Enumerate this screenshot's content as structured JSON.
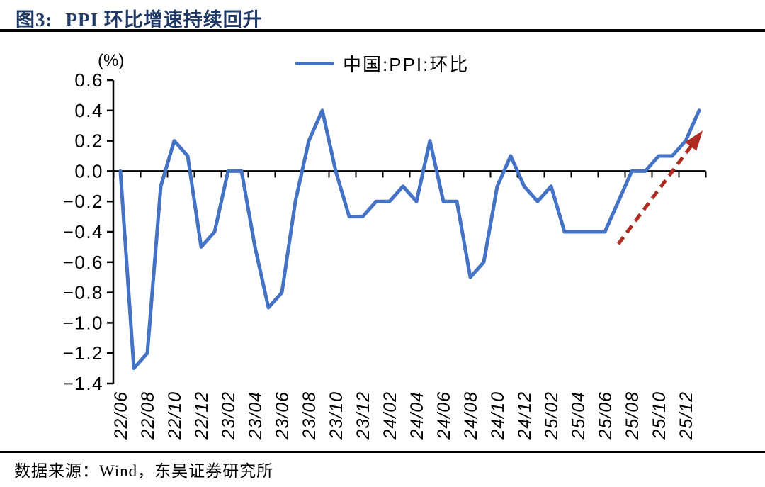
{
  "header": {
    "figure_label": "图3:",
    "title": "PPI 环比增速持续回升"
  },
  "legend": {
    "series_label": "中国:PPI:环比"
  },
  "chart_data": {
    "type": "line",
    "title": "中国:PPI:环比",
    "unit_label": "(%)",
    "xlabel": "",
    "ylabel": "(%)",
    "ylim": [
      -1.4,
      0.6
    ],
    "grid": "none",
    "legend_position": "top-center",
    "line_color": "#4472C4",
    "axis_color": "#000000",
    "x": [
      "22/06",
      "22/07",
      "22/08",
      "22/09",
      "22/10",
      "22/11",
      "22/12",
      "23/01",
      "23/02",
      "23/03",
      "23/04",
      "23/05",
      "23/06",
      "23/07",
      "23/08",
      "23/09",
      "23/10",
      "23/11",
      "23/12",
      "24/01",
      "24/02",
      "24/03",
      "24/04",
      "24/05",
      "24/06",
      "24/07",
      "24/08",
      "24/09",
      "24/10",
      "24/11",
      "24/12",
      "25/01",
      "25/02",
      "25/03",
      "25/04",
      "25/05",
      "25/06",
      "25/07",
      "25/08",
      "25/09",
      "25/10",
      "25/11",
      "25/12",
      "26/01"
    ],
    "values": [
      0.0,
      -1.3,
      -1.2,
      -0.1,
      0.2,
      0.1,
      -0.5,
      -0.4,
      0.0,
      0.0,
      -0.5,
      -0.9,
      -0.8,
      -0.2,
      0.2,
      0.4,
      0.0,
      -0.3,
      -0.3,
      -0.2,
      -0.2,
      -0.1,
      -0.2,
      0.2,
      -0.2,
      -0.2,
      -0.7,
      -0.6,
      -0.1,
      0.1,
      -0.1,
      -0.2,
      -0.1,
      -0.4,
      -0.4,
      -0.4,
      -0.4,
      -0.2,
      0.0,
      0.0,
      0.1,
      0.1,
      0.2,
      0.4
    ],
    "x_tick_labels": [
      "22/06",
      "22/08",
      "22/10",
      "22/12",
      "23/02",
      "23/04",
      "23/06",
      "23/08",
      "23/10",
      "23/12",
      "24/02",
      "24/04",
      "24/06",
      "24/08",
      "24/10",
      "24/12",
      "25/02",
      "25/04",
      "25/06",
      "25/08",
      "25/10",
      "25/12"
    ],
    "y_ticks": [
      0.6,
      0.4,
      0.2,
      0.0,
      -0.2,
      -0.4,
      -0.6,
      -0.8,
      -1.0,
      -1.2,
      -1.4
    ],
    "y_tick_labels": [
      "0.6",
      "0.4",
      "0.2",
      "0.0",
      "−0.2",
      "−0.4",
      "−0.6",
      "−0.8",
      "−1.0",
      "−1.2",
      "−1.4"
    ],
    "annotation_arrow": {
      "style": "dashed",
      "color": "#B02B22",
      "from": {
        "x_index": 37,
        "value": -0.48
      },
      "to": {
        "x_index": 43.2,
        "value": 0.26
      }
    }
  },
  "footer": {
    "source": "数据来源：Wind，东吴证券研究所"
  }
}
